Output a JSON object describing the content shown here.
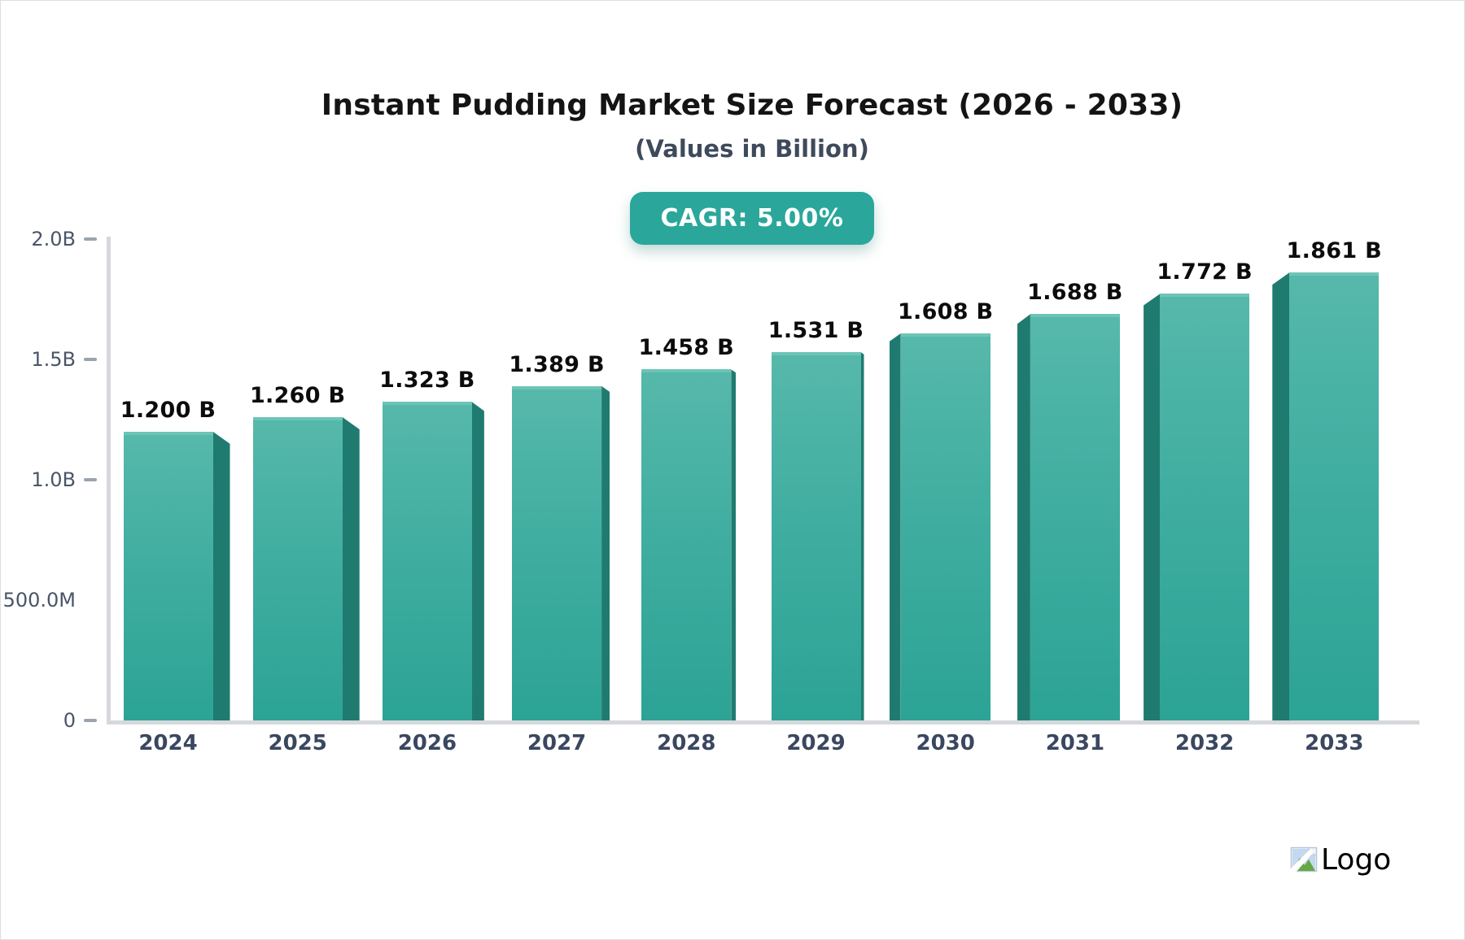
{
  "header": {
    "title": "Instant Pudding Market Size Forecast (2026 - 2033)",
    "subtitle": "(Values in Billion)",
    "cagr_badge": "CAGR: 5.00%"
  },
  "chart_data": {
    "type": "bar",
    "title": "Instant Pudding Market Size Forecast (2026 - 2033)",
    "subtitle": "(Values in Billion)",
    "annotation": "CAGR: 5.00%",
    "categories": [
      "2024",
      "2025",
      "2026",
      "2027",
      "2028",
      "2029",
      "2030",
      "2031",
      "2032",
      "2033"
    ],
    "values": [
      1.2,
      1.26,
      1.323,
      1.389,
      1.458,
      1.531,
      1.608,
      1.688,
      1.772,
      1.861
    ],
    "value_labels": [
      "1.200 B",
      "1.260 B",
      "1.323 B",
      "1.389 B",
      "1.458 B",
      "1.531 B",
      "1.608 B",
      "1.688 B",
      "1.772 B",
      "1.861 B"
    ],
    "unit": "Billion",
    "ylim": [
      0,
      2.0
    ],
    "y_axis": {
      "ticks": [
        {
          "label": "2.0B",
          "value": 2.0,
          "tick_mark": true
        },
        {
          "label": "1.5B",
          "value": 1.5,
          "tick_mark": true
        },
        {
          "label": "1.0B",
          "value": 1.0,
          "tick_mark": true
        },
        {
          "label": "500.0M",
          "value": 0.5,
          "tick_mark": false
        },
        {
          "label": "0",
          "value": 0.0,
          "tick_mark": true
        }
      ]
    },
    "legend": null,
    "grid": false,
    "colors": {
      "bar_gradient_top": "#56b8aa",
      "bar_gradient_bottom": "#2ca395",
      "bar_highlight": "#6dc4b6",
      "bar_side_face": "#1f7b6f",
      "badge_background": "#2aa79a",
      "axis_line": "#d6d8dc",
      "tick_mark": "#9ba3b0",
      "axis_label": "#4a5568",
      "category_label": "#3a4760",
      "value_label": "#0c0c0c"
    }
  },
  "footer": {
    "logo_text": "Logo"
  }
}
